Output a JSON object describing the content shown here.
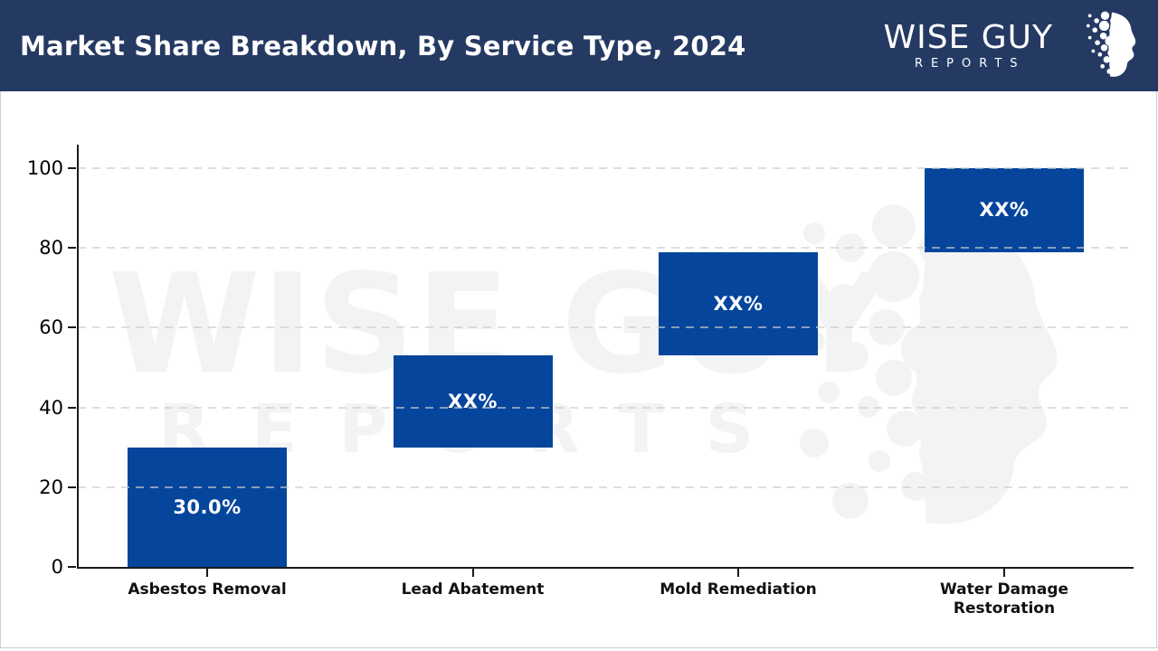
{
  "header": {
    "logo": {
      "line1": "WISE GUY",
      "line2": "REPORTS"
    }
  },
  "watermark": {
    "line1": "WISE GUY",
    "line2": "REPORTS"
  },
  "chart_data": {
    "type": "bar",
    "subtype": "waterfall",
    "title": "Market Share Breakdown, By Service Type, 2024",
    "categories": [
      "Asbestos Removal",
      "Lead Abatement",
      "Mold Remediation",
      "Water Damage Restoration"
    ],
    "segments": [
      {
        "category": "Asbestos Removal",
        "start": 0,
        "end": 30,
        "value": 30,
        "label": "30.0%"
      },
      {
        "category": "Lead Abatement",
        "start": 30,
        "end": 53,
        "value": 23,
        "label": "XX%"
      },
      {
        "category": "Mold Remediation",
        "start": 53,
        "end": 79,
        "value": 26,
        "label": "XX%"
      },
      {
        "category": "Water Damage Restoration",
        "start": 79,
        "end": 100,
        "value": 21,
        "label": "XX%"
      }
    ],
    "xlabel": "",
    "ylabel": "",
    "ylim": [
      0,
      100
    ],
    "yticks": [
      0,
      20,
      40,
      60,
      80,
      100
    ],
    "grid": "horizontal-dashed",
    "legend": null,
    "colors": {
      "bar": "#05459c",
      "header_background": "#253a63",
      "title_text": "#ffffff",
      "axis": "#1a1a1a",
      "gridline": "#d5d5d5",
      "bar_label_text": "#ffffff",
      "watermark": "#f2f3f5"
    }
  }
}
